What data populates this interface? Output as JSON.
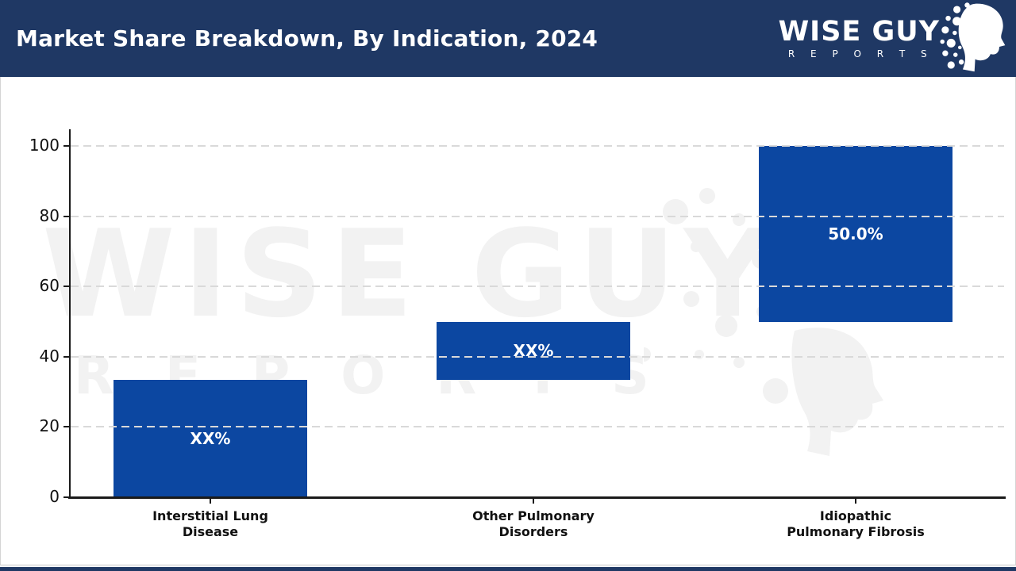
{
  "header": {
    "title": "Market Share Breakdown, By Indication, 2024",
    "logo": {
      "wordmark": "WISE GUY",
      "subtext": "R E P O R T S"
    }
  },
  "watermark": {
    "wordmark": "WISE GUY",
    "subtext": "REPORTS"
  },
  "colors": {
    "header_navy": "#1f3864",
    "bar_blue": "#0c47a1",
    "gridline_gray": "#d9d9d9",
    "watermark_gray": "#f2f2f2",
    "axis_black": "#1a1a1a"
  },
  "chart_data": {
    "type": "bar",
    "subtype": "cumulative-range (waterfall-style market share breakdown)",
    "title": "Market Share Breakdown, By Indication, 2024",
    "categories": [
      [
        "Interstitial Lung",
        "Disease"
      ],
      [
        "Other Pulmonary",
        "Disorders"
      ],
      [
        "Idiopathic",
        "Pulmonary Fibrosis"
      ]
    ],
    "bars": [
      {
        "category": "Interstitial Lung Disease",
        "from": 0,
        "to": 33.3,
        "label": "XX%"
      },
      {
        "category": "Other Pulmonary Disorders",
        "from": 33.3,
        "to": 50,
        "label": "XX%"
      },
      {
        "category": "Idiopathic Pulmonary Fibrosis",
        "from": 50,
        "to": 100,
        "label": "50.0%"
      }
    ],
    "xlabel": "",
    "ylabel": "",
    "ylim": [
      0,
      100
    ],
    "yticks": [
      0,
      20,
      40,
      60,
      80,
      100
    ],
    "grid": "horizontal-dashed",
    "grid_over_bars": true,
    "legend": "none",
    "bar_color": "#0c47a1",
    "value_label_color": "#ffffff"
  }
}
